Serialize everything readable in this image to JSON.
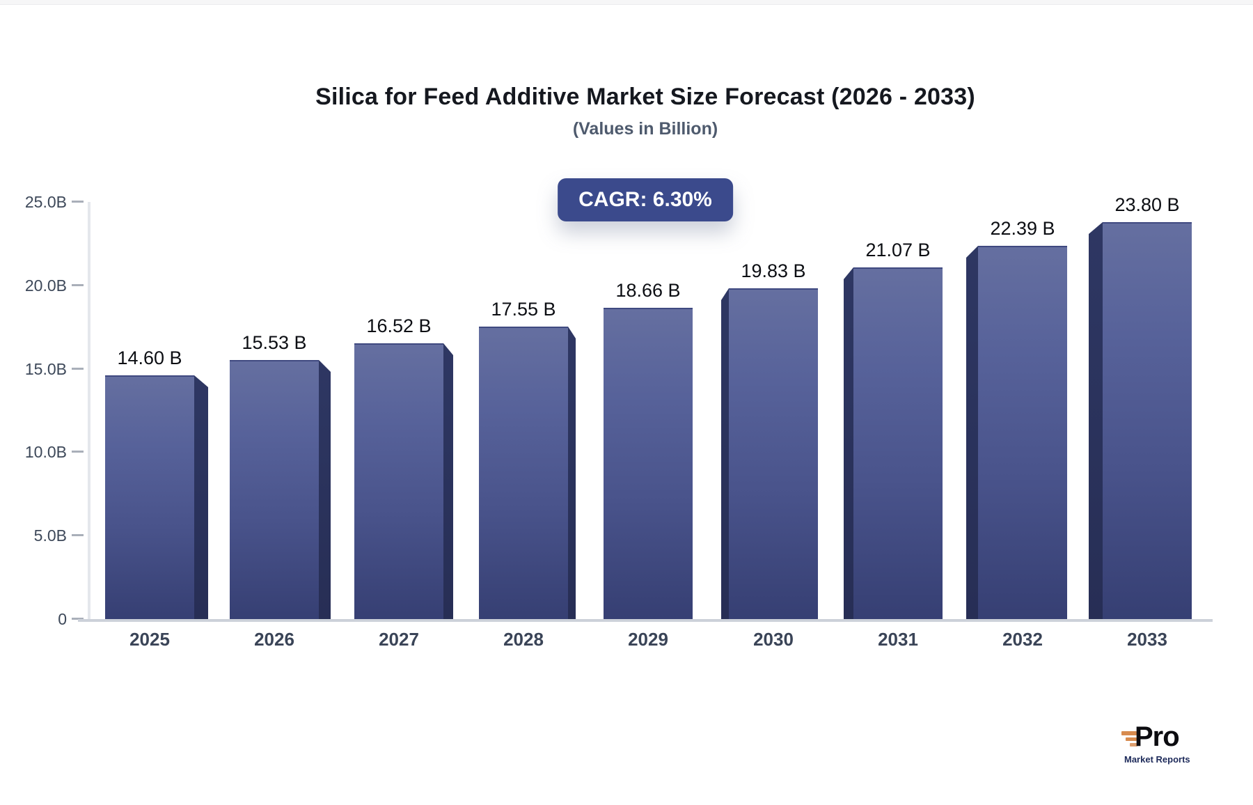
{
  "chart_data": {
    "type": "bar",
    "title": "Silica for Feed Additive Market Size Forecast (2026 - 2033)",
    "subtitle": "(Values in Billion)",
    "annotation": "CAGR: 6.30%",
    "categories": [
      "2025",
      "2026",
      "2027",
      "2028",
      "2029",
      "2030",
      "2031",
      "2032",
      "2033"
    ],
    "values": [
      14.6,
      15.53,
      16.52,
      17.55,
      18.66,
      19.83,
      21.07,
      22.39,
      23.8
    ],
    "value_labels": [
      "14.60 B",
      "15.53 B",
      "16.52 B",
      "17.55 B",
      "18.66 B",
      "19.83 B",
      "21.07 B",
      "22.39 B",
      "23.80 B"
    ],
    "ytick_labels": [
      "0",
      "5.0B",
      "10.0B",
      "15.0B",
      "20.0B",
      "25.0B"
    ],
    "ytick_values": [
      0,
      5,
      10,
      15,
      20,
      25
    ],
    "ylim": [
      0,
      25
    ],
    "grid": "off",
    "legend": "none",
    "colors": {
      "bar_face_top": "#656fa0",
      "bar_face_bottom": "#363f73",
      "bar_side": "#2b3460",
      "badge_bg": "#3b4a8c",
      "badge_text": "#ffffff",
      "axis_text": "#3d4859",
      "logo_orange": "#d78b4f"
    }
  },
  "logo": {
    "name": "Pro",
    "tagline": "Market Reports"
  }
}
